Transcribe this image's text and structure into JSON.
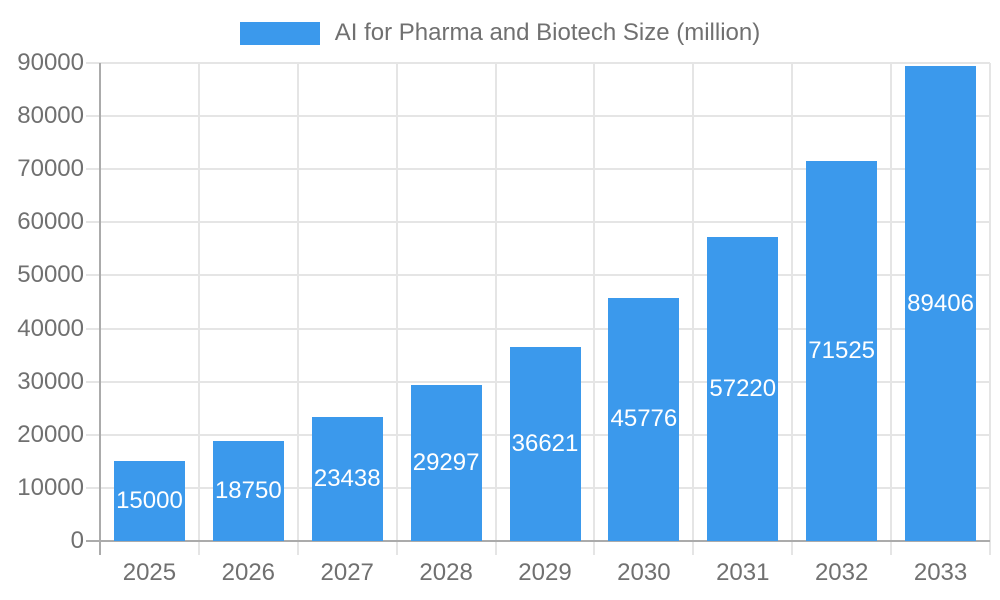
{
  "chart_data": {
    "type": "bar",
    "title": "AI for Pharma and Biotech Size (million)",
    "series_name": "AI for Pharma and Biotech Size (million)",
    "categories": [
      "2025",
      "2026",
      "2027",
      "2028",
      "2029",
      "2030",
      "2031",
      "2032",
      "2033"
    ],
    "values": [
      15000,
      18750,
      23438,
      29297,
      36621,
      45776,
      57220,
      71525,
      89406
    ],
    "yticks": [
      0,
      10000,
      20000,
      30000,
      40000,
      50000,
      60000,
      70000,
      80000,
      90000
    ],
    "xlabel": "",
    "ylabel": "",
    "ylim": [
      0,
      90000
    ],
    "grid": true,
    "legend_position": "top-center",
    "value_labels": "inside-center",
    "bar_color": "#3b99ec",
    "bar_label_color": "#ffffff",
    "axis_text_color": "#707070",
    "gridline_color": "#e5e5e5",
    "axis_line_color": "#ababab",
    "background_color": "#ffffff"
  }
}
